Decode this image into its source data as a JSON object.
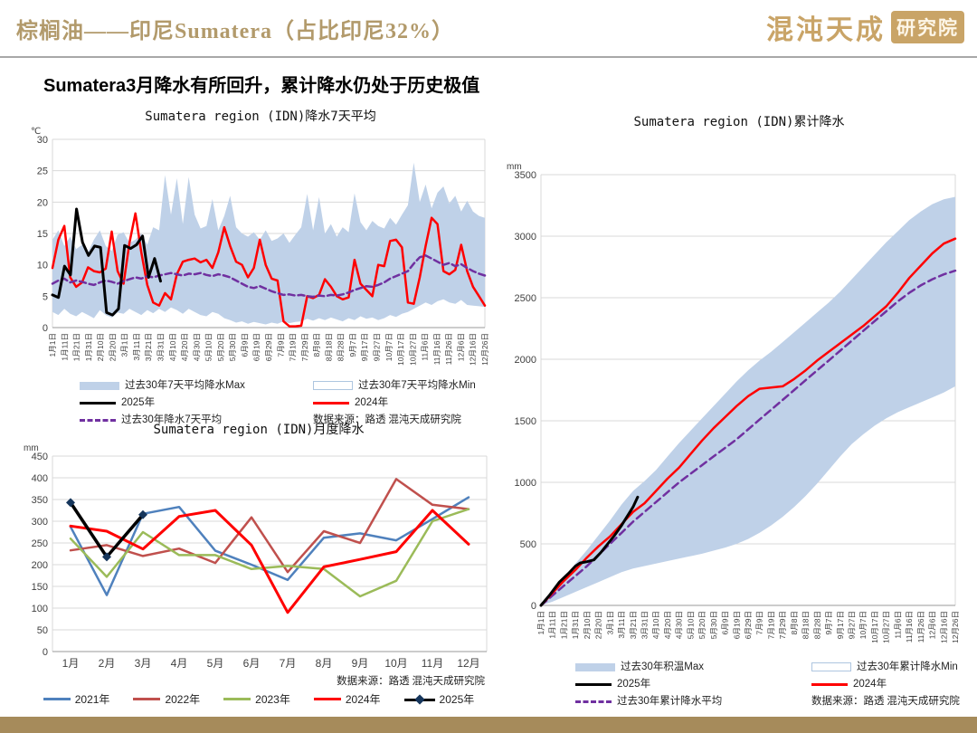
{
  "header": {
    "title": "棕榈油——印尼Sumatera（占比印尼32%）",
    "logo_text": "混沌天成",
    "logo_badge": "研究院"
  },
  "subtitle": "Sumatera3月降水有所回升，累计降水仍处于历史极值",
  "colors": {
    "accent_gold": "#b29a6b",
    "footer_bar": "#a68b5b",
    "band_fill": "#bfd1e8",
    "grid": "#d9d9d9",
    "axis": "#9a9a9a",
    "red_2024": "#ff0000",
    "black_2025": "#000000",
    "purple_avg": "#7030a0",
    "blue_2021": "#4f81bd",
    "brick_2022": "#c0504d",
    "green_2023": "#9bbb59"
  },
  "chart_data": [
    {
      "id": "weekly",
      "type": "area",
      "title": "Sumatera region (IDN)降水7天平均",
      "unit": "℃",
      "ylim": [
        0,
        30
      ],
      "yticks": [
        30,
        25,
        20,
        15,
        10,
        5,
        0
      ],
      "x_day_max": 360,
      "xlabels": [
        "1月1日",
        "1月11日",
        "1月21日",
        "1月31日",
        "2月10日",
        "2月20日",
        "3月1日",
        "3月11日",
        "3月21日",
        "3月31日",
        "4月10日",
        "4月20日",
        "4月30日",
        "5月10日",
        "5月20日",
        "5月30日",
        "6月9日",
        "6月19日",
        "6月29日",
        "7月9日",
        "7月19日",
        "7月29日",
        "8月8日",
        "8月18日",
        "8月28日",
        "9月7日",
        "9月17日",
        "9月27日",
        "10月7日",
        "10月17日",
        "10月27日",
        "11月6日",
        "11月16日",
        "11月26日",
        "12月6日",
        "12月16日",
        "12月26日"
      ],
      "series": [
        {
          "name": "过去30年7天平均降水Max",
          "type": "band",
          "color": "#bfd1e8",
          "upper": [
            14,
            15.5,
            13,
            14.5,
            12.5,
            13.2,
            12,
            14,
            15.5,
            13,
            12.2,
            14.8,
            15.2,
            13.5,
            14,
            15,
            13.2,
            16,
            15.5,
            24.3,
            18,
            23.8,
            16.5,
            24,
            18,
            15.8,
            16.2,
            20.5,
            15.5,
            17.8,
            21,
            16,
            15,
            14.5,
            15.2,
            14,
            15.5,
            13.8,
            14.2,
            15,
            13.5,
            14.8,
            16,
            21.3,
            15.5,
            20.8,
            15,
            16.5,
            14.5,
            16,
            15.2,
            21.4,
            16.8,
            15.5,
            17,
            16.2,
            15.8,
            17.5,
            16.4,
            18,
            19.5,
            26.3,
            20,
            22.8,
            19,
            21.5,
            22.5,
            19.8,
            21,
            18.5,
            20.2,
            18.5,
            17.8,
            17.5
          ],
          "lower": [
            2.5,
            2,
            3,
            2.2,
            1.8,
            2.5,
            2,
            1.5,
            2.8,
            2,
            1.6,
            2.4,
            2.2,
            3,
            2.5,
            2,
            2.8,
            2.3,
            3,
            2.5,
            3.2,
            2.8,
            2.2,
            3,
            2.5,
            2,
            1.8,
            2.5,
            2.2,
            1.5,
            1.2,
            0.8,
            1,
            0.6,
            0.9,
            0.7,
            0.5,
            0.8,
            0.6,
            1,
            0.7,
            0.9,
            1,
            1.4,
            1.1,
            1.5,
            1.2,
            1.6,
            1.3,
            1,
            1.5,
            1.2,
            1.8,
            1.4,
            1.6,
            1.2,
            1.5,
            2,
            1.7,
            2.2,
            2.5,
            3,
            3.5,
            4,
            3.6,
            4.2,
            4.5,
            4,
            3.8,
            4.4,
            3.6,
            3.5,
            3.4,
            3.3
          ]
        },
        {
          "name": "2024年",
          "type": "line",
          "color": "#ff0000",
          "width": 2.5,
          "values": [
            9.5,
            14,
            16.2,
            8,
            6.5,
            7.2,
            9.6,
            9,
            8.8,
            9.4,
            15.3,
            9,
            7,
            13.5,
            18.2,
            12,
            6.8,
            4,
            3.5,
            5.5,
            4.5,
            8.5,
            10.5,
            10.8,
            11,
            10.4,
            10.8,
            9.5,
            12,
            16,
            13,
            10.5,
            10,
            8,
            9.5,
            14,
            10,
            7.8,
            7.5,
            1,
            0.2,
            0.2,
            0.3,
            5,
            4.7,
            5.2,
            7.7,
            6.5,
            5,
            4.5,
            4.8,
            10.8,
            7,
            6,
            5,
            10,
            9.8,
            13.8,
            14,
            12.8,
            4,
            3.8,
            8,
            13,
            17.5,
            16.5,
            9,
            8.5,
            9.2,
            13.2,
            9,
            6.5,
            5,
            3.5
          ]
        },
        {
          "name": "过去30年降水7天平均",
          "type": "line",
          "color": "#7030a0",
          "width": 2.5,
          "dash": "7,4",
          "values": [
            7,
            7.5,
            7.8,
            7.2,
            7.5,
            7.3,
            7,
            6.8,
            7.2,
            7.5,
            7.3,
            7,
            7.4,
            7.7,
            8,
            7.8,
            8.2,
            8,
            8.3,
            8.5,
            8.7,
            8.5,
            8.3,
            8.6,
            8.5,
            8.7,
            8.4,
            8.2,
            8.5,
            8.3,
            8,
            7.5,
            7,
            6.5,
            6.3,
            6.6,
            6.2,
            5.8,
            5.5,
            5.2,
            5.3,
            5.1,
            5.2,
            5,
            4.9,
            5.1,
            5,
            5.2,
            5.1,
            5.3,
            5.6,
            6,
            6.3,
            6.6,
            6.5,
            6.8,
            7.2,
            7.8,
            8.2,
            8.6,
            9,
            10.2,
            11.2,
            11.5,
            11,
            10.5,
            10,
            10.3,
            9.8,
            10.1,
            9.5,
            9,
            8.6,
            8.3
          ]
        },
        {
          "name": "2025年",
          "type": "line",
          "color": "#000000",
          "width": 3,
          "x_days": [
            0,
            5,
            10,
            15,
            20,
            25,
            30,
            35,
            40,
            45,
            50,
            55,
            60,
            65,
            70,
            75,
            80,
            85,
            90
          ],
          "values": [
            5.2,
            4.8,
            9.8,
            8.4,
            18.9,
            13.6,
            11.5,
            13,
            12.8,
            2.4,
            2,
            3,
            13.1,
            12.6,
            13.2,
            14.6,
            8,
            11,
            7.4
          ]
        }
      ],
      "legend_rows": [
        [
          {
            "marker": "band",
            "color": "#bfd1e8",
            "label": "过去30年7天平均降水Max"
          },
          {
            "marker": "bandOutline",
            "color": "#aec6e0",
            "label": "过去30年7天平均降水Min"
          }
        ],
        [
          {
            "marker": "line",
            "color": "#000000",
            "label": "2025年"
          },
          {
            "marker": "line",
            "color": "#ff0000",
            "label": "2024年"
          }
        ],
        [
          {
            "marker": "dash",
            "color": "#7030a0",
            "label": "过去30年降水7天平均"
          },
          {
            "marker": "source"
          }
        ]
      ],
      "source": "数据来源：路透  混沌天成研究院"
    },
    {
      "id": "monthly",
      "type": "line",
      "title": "Sumatera region (IDN)月度降水",
      "unit": "mm",
      "ylim": [
        0,
        450
      ],
      "yticks": [
        450,
        400,
        350,
        300,
        250,
        200,
        150,
        100,
        50,
        0
      ],
      "categories": [
        "1月",
        "2月",
        "3月",
        "4月",
        "5月",
        "6月",
        "7月",
        "8月",
        "9月",
        "10月",
        "11月",
        "12月"
      ],
      "series": [
        {
          "name": "2021年",
          "type": "line",
          "color": "#4f81bd",
          "width": 2.5,
          "values": [
            287,
            130,
            317,
            333,
            232,
            200,
            165,
            262,
            272,
            256,
            305,
            355
          ]
        },
        {
          "name": "2022年",
          "type": "line",
          "color": "#c0504d",
          "width": 2.5,
          "values": [
            233,
            245,
            220,
            237,
            204,
            309,
            183,
            277,
            250,
            397,
            338,
            328
          ]
        },
        {
          "name": "2023年",
          "type": "line",
          "color": "#9bbb59",
          "width": 2.5,
          "values": [
            260,
            172,
            275,
            222,
            222,
            190,
            197,
            190,
            127,
            163,
            300,
            328
          ]
        },
        {
          "name": "2024年",
          "type": "line",
          "color": "#ff0000",
          "width": 3,
          "values": [
            289,
            277,
            236,
            311,
            325,
            245,
            90,
            195,
            212,
            230,
            325,
            247
          ]
        },
        {
          "name": "2025年",
          "type": "line",
          "color": "#000000",
          "width": 3.5,
          "marker": "diamond",
          "values": [
            343,
            218,
            315
          ]
        }
      ],
      "legend_row": [
        {
          "marker": "lineSm",
          "color": "#4f81bd",
          "label": "2021年"
        },
        {
          "marker": "lineSm",
          "color": "#c0504d",
          "label": "2022年"
        },
        {
          "marker": "lineSm",
          "color": "#9bbb59",
          "label": "2023年"
        },
        {
          "marker": "lineSm",
          "color": "#ff0000",
          "label": "2024年"
        },
        {
          "marker": "lineDiamond",
          "color": "#000000",
          "label": "2025年"
        }
      ],
      "source": "数据来源：路透  混沌天成研究院"
    },
    {
      "id": "cumulative",
      "type": "area",
      "title": "Sumatera region (IDN)累计降水",
      "unit": "mm",
      "ylim": [
        0,
        3500
      ],
      "yticks": [
        3500,
        3000,
        2500,
        2000,
        1500,
        1000,
        500,
        0
      ],
      "x_day_max": 360,
      "xlabels": [
        "1月1日",
        "1月11日",
        "1月21日",
        "1月31日",
        "2月10日",
        "2月20日",
        "3月1日",
        "3月11日",
        "3月21日",
        "3月31日",
        "4月10日",
        "4月20日",
        "4月30日",
        "5月10日",
        "5月20日",
        "5月30日",
        "6月9日",
        "6月19日",
        "6月29日",
        "7月9日",
        "7月19日",
        "7月29日",
        "8月8日",
        "8月18日",
        "8月28日",
        "9月7日",
        "9月17日",
        "9月27日",
        "10月7日",
        "10月17日",
        "10月27日",
        "11月6日",
        "11月16日",
        "11月26日",
        "12月6日",
        "12月16日",
        "12月26日"
      ],
      "series": [
        {
          "name": "过去30年积温Max",
          "type": "band",
          "color": "#bfd1e8",
          "upper": [
            0,
            110,
            230,
            340,
            450,
            570,
            690,
            820,
            930,
            1010,
            1100,
            1210,
            1320,
            1420,
            1520,
            1620,
            1720,
            1820,
            1910,
            1990,
            2060,
            2140,
            2220,
            2300,
            2380,
            2460,
            2550,
            2650,
            2750,
            2850,
            2950,
            3040,
            3130,
            3200,
            3260,
            3300,
            3320
          ],
          "lower": [
            0,
            30,
            70,
            110,
            150,
            190,
            230,
            270,
            300,
            320,
            340,
            360,
            380,
            400,
            420,
            445,
            470,
            500,
            540,
            590,
            650,
            720,
            800,
            890,
            990,
            1100,
            1210,
            1310,
            1390,
            1460,
            1520,
            1570,
            1610,
            1650,
            1690,
            1730,
            1780
          ]
        },
        {
          "name": "过去30年累计降水平均",
          "type": "line",
          "color": "#7030a0",
          "width": 2.5,
          "dash": "8,5",
          "values": [
            0,
            80,
            160,
            240,
            320,
            410,
            500,
            590,
            680,
            760,
            840,
            920,
            1000,
            1070,
            1140,
            1210,
            1280,
            1350,
            1430,
            1510,
            1590,
            1670,
            1750,
            1830,
            1910,
            1990,
            2070,
            2150,
            2230,
            2310,
            2390,
            2470,
            2540,
            2600,
            2650,
            2690,
            2720
          ]
        },
        {
          "name": "2024年",
          "type": "line",
          "color": "#ff0000",
          "width": 2.5,
          "values": [
            0,
            100,
            200,
            290,
            390,
            480,
            560,
            660,
            760,
            830,
            930,
            1030,
            1120,
            1230,
            1340,
            1440,
            1530,
            1620,
            1700,
            1760,
            1770,
            1780,
            1840,
            1910,
            1990,
            2060,
            2130,
            2200,
            2270,
            2350,
            2430,
            2540,
            2660,
            2760,
            2860,
            2940,
            2980
          ]
        },
        {
          "name": "2025年",
          "type": "line",
          "color": "#000000",
          "width": 3,
          "x_days": [
            0,
            8,
            16,
            24,
            30,
            34,
            40,
            46,
            52,
            58,
            64,
            70,
            76,
            80,
            84
          ],
          "values": [
            0,
            90,
            190,
            260,
            320,
            345,
            355,
            370,
            430,
            500,
            570,
            650,
            740,
            800,
            880
          ]
        }
      ],
      "legend_rows": [
        [
          {
            "marker": "band",
            "color": "#bfd1e8",
            "label": "过去30年积温Max"
          },
          {
            "marker": "bandOutline",
            "color": "#aec6e0",
            "label": "过去30年累计降水Min"
          }
        ],
        [
          {
            "marker": "line",
            "color": "#000000",
            "label": "2025年"
          },
          {
            "marker": "line",
            "color": "#ff0000",
            "label": "2024年"
          }
        ],
        [
          {
            "marker": "dash",
            "color": "#7030a0",
            "label": "过去30年累计降水平均"
          },
          {
            "marker": "source"
          }
        ]
      ],
      "source": "数据来源：路透  混沌天成研究院"
    }
  ]
}
